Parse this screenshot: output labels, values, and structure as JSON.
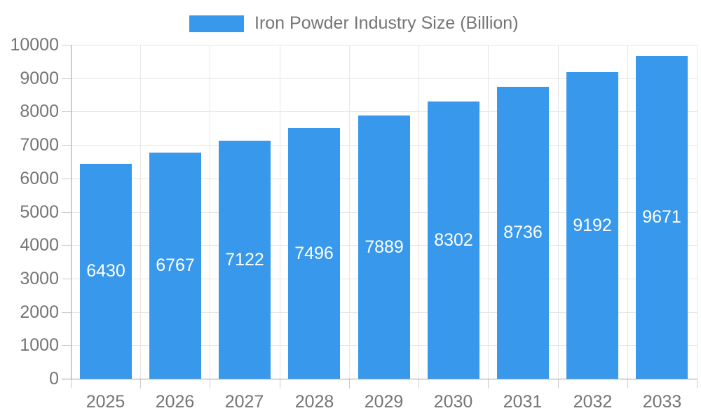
{
  "legend": {
    "label": "Iron Powder Industry Size (Billion)"
  },
  "chart_data": {
    "type": "bar",
    "title": "Iron Powder Industry Size (Billion)",
    "categories": [
      "2025",
      "2026",
      "2027",
      "2028",
      "2029",
      "2030",
      "2031",
      "2032",
      "2033"
    ],
    "values": [
      6430,
      6767,
      7122,
      7496,
      7889,
      8302,
      8736,
      9192,
      9671
    ],
    "xlabel": "",
    "ylabel": "",
    "ylim": [
      0,
      10000
    ],
    "ytick_interval": 1000,
    "yticks": [
      0,
      1000,
      2000,
      3000,
      4000,
      5000,
      6000,
      7000,
      8000,
      9000,
      10000
    ],
    "grid": true,
    "legend_position": "top-center",
    "bar_color": "#3898ec",
    "bar_value_text_color": "#ffffff",
    "axis_text_color": "#757575",
    "grid_color": "#e6e6e6",
    "axis_line_color": "#9e9e9e",
    "tick_color": "#cccccc",
    "background_color": "#ffffff"
  }
}
